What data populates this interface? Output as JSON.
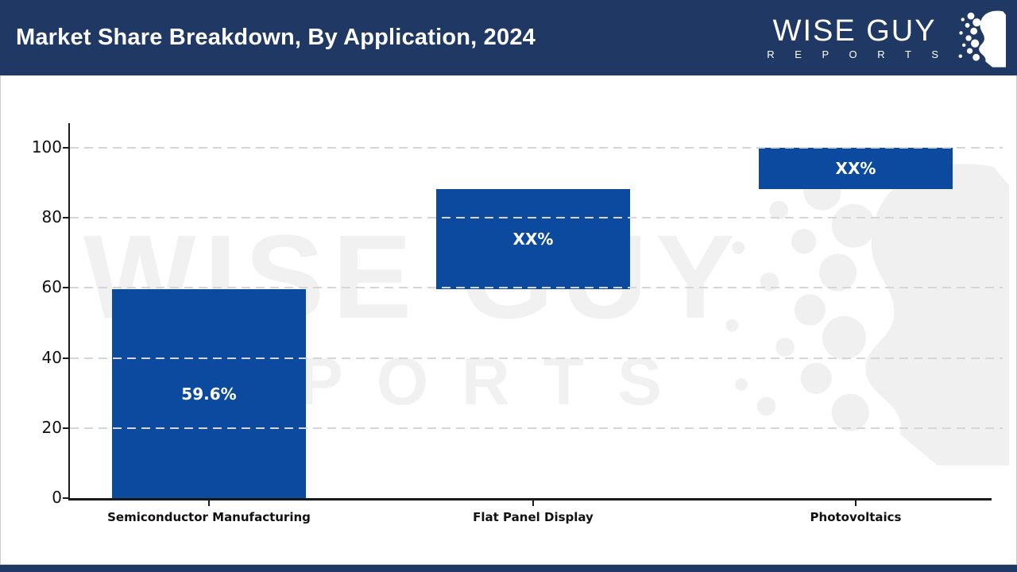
{
  "header": {
    "title": "Market Share Breakdown, By Application, 2024",
    "bg_color": "#1f3864",
    "logo": {
      "line1": "WISE GUY",
      "line2": "R E P O R T S"
    }
  },
  "watermark": {
    "line1": "WISE GUY",
    "line2": "REPORTS"
  },
  "chart_data": {
    "type": "bar",
    "variant": "floating-segment-waterfall",
    "title": "Market Share Breakdown, By Application, 2024",
    "categories": [
      "Semiconductor Manufacturing",
      "Flat Panel Display",
      "Photovoltaics"
    ],
    "series": [
      {
        "name": "Semiconductor Manufacturing",
        "start": 0,
        "end": 59.6,
        "label": "59.6%"
      },
      {
        "name": "Flat Panel Display",
        "start": 59.6,
        "end": 88.2,
        "label": "XX%"
      },
      {
        "name": "Photovoltaics",
        "start": 88.2,
        "end": 100,
        "label": "XX%"
      }
    ],
    "bar_color": "#0b4a9e",
    "bar_label_color": "#ffffff",
    "yticks": [
      0,
      20,
      40,
      60,
      80,
      100
    ],
    "ylim": [
      0,
      107
    ],
    "grid": {
      "axis": "y",
      "style": "dashed",
      "color": "#d6d6d6"
    },
    "legend": "none"
  }
}
